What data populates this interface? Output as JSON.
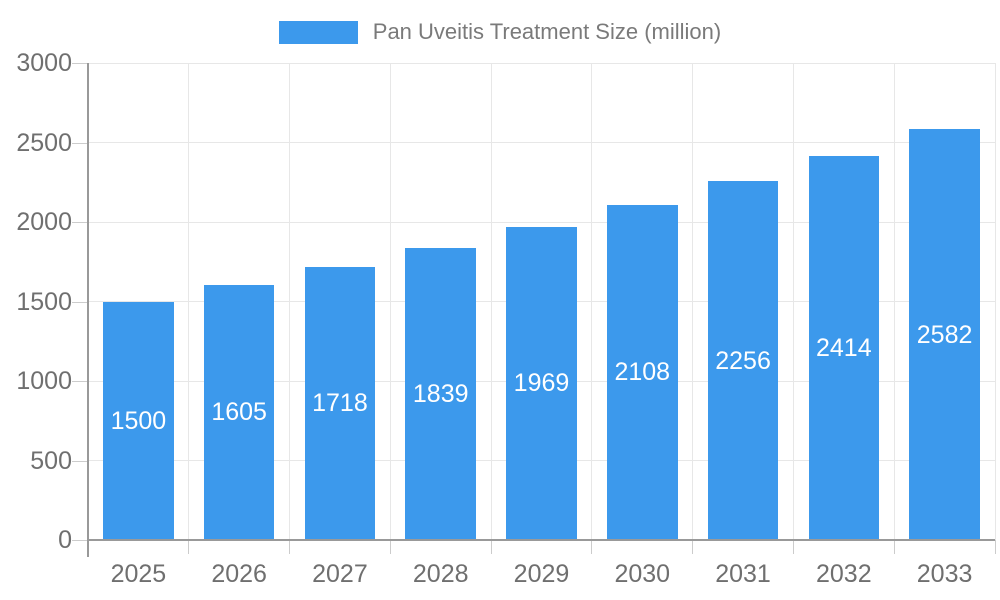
{
  "legend": {
    "label": "Pan Uveitis Treatment Size (million)"
  },
  "colors": {
    "bar": "#3c99ec",
    "grid": "#e7e7e7",
    "axis": "#999999",
    "tick": "#cccccc",
    "tick_text": "#6f6f6f",
    "legend_text": "#7a7a7a",
    "bar_label": "#ffffff",
    "background": "#ffffff"
  },
  "chart_data": {
    "type": "bar",
    "title": "Pan Uveitis Treatment Size (million)",
    "categories": [
      "2025",
      "2026",
      "2027",
      "2028",
      "2029",
      "2030",
      "2031",
      "2032",
      "2033"
    ],
    "values": [
      1500,
      1605,
      1718,
      1839,
      1969,
      2108,
      2256,
      2414,
      2582
    ],
    "xlabel": "",
    "ylabel": "",
    "ylim": [
      0,
      3000
    ],
    "yticks": [
      0,
      500,
      1000,
      1500,
      2000,
      2500,
      3000
    ],
    "grid": true,
    "legend_position": "top",
    "bar_value_labels": true
  }
}
